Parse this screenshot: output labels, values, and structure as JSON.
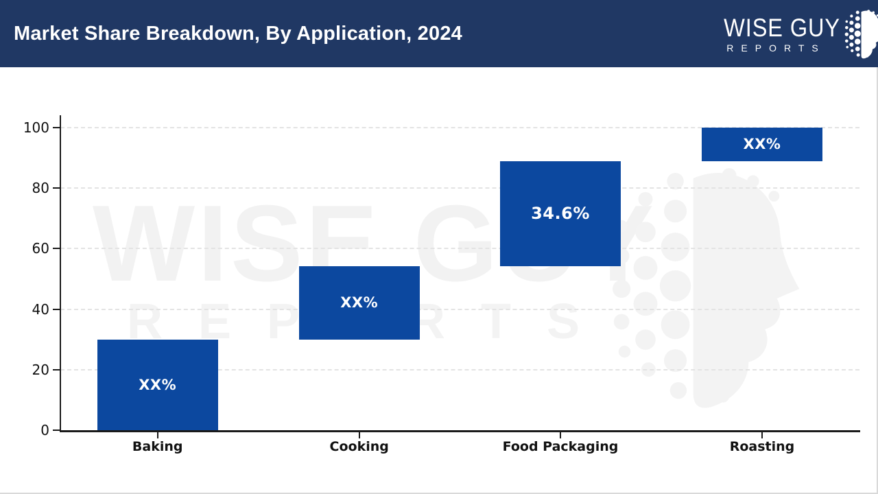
{
  "header": {
    "title": "Market Share Breakdown, By Application, 2024"
  },
  "logo": {
    "line1": "WISE GUY",
    "line2": "REPORTS",
    "icon": "dotted-head-profile-icon"
  },
  "watermark": {
    "line1": "WISE GUY",
    "line2": "REPORTS",
    "icon": "dotted-head-profile-icon"
  },
  "colors": {
    "header_bg": "#203864",
    "bar_fill": "#0c489f",
    "bar_label_text": "#ffffff",
    "axis": "#1a1a1a",
    "gridline": "#e3e3e3",
    "watermark": "#f2f2f2",
    "edge_line": "#d9d9d9"
  },
  "chart_data": {
    "type": "bar",
    "subtype": "waterfall",
    "title": "Market Share Breakdown, By Application, 2024",
    "categories": [
      "Baking",
      "Cooking",
      "Food Packaging",
      "Roasting"
    ],
    "segments": [
      {
        "category": "Baking",
        "start": 0,
        "end": 29.9,
        "value": 29.9,
        "label": "XX%"
      },
      {
        "category": "Cooking",
        "start": 29.9,
        "end": 54.3,
        "value": 24.4,
        "label": "XX%"
      },
      {
        "category": "Food Packaging",
        "start": 54.3,
        "end": 88.9,
        "value": 34.6,
        "label": "34.6%"
      },
      {
        "category": "Roasting",
        "start": 88.9,
        "end": 100,
        "value": 11.1,
        "label": "XX%"
      }
    ],
    "ylim": [
      0,
      100
    ],
    "yticks": [
      0,
      20,
      40,
      60,
      80,
      100
    ],
    "xlabel": "",
    "ylabel": "",
    "grid": "horizontal-dashed",
    "legend": "none"
  }
}
